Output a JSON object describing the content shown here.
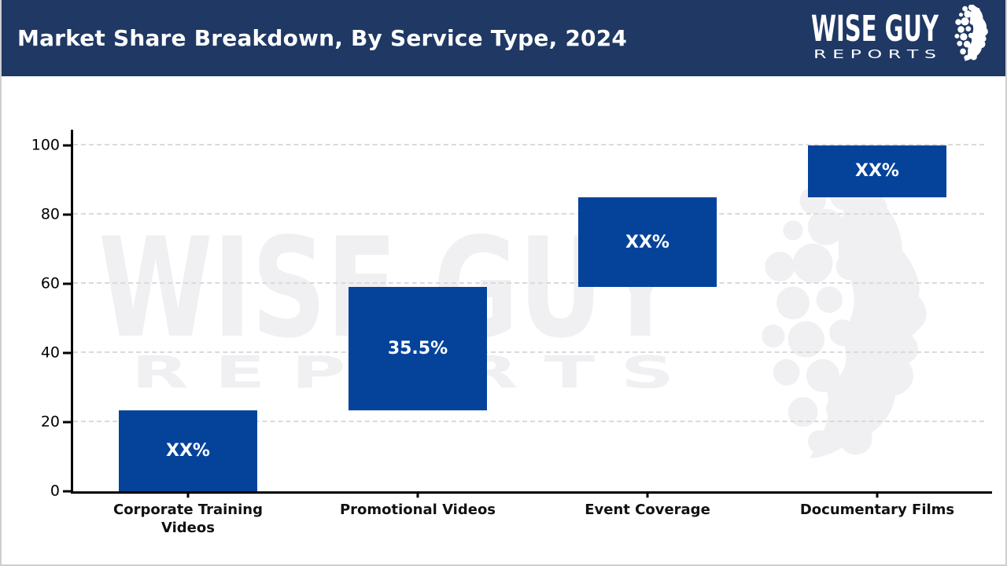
{
  "header": {
    "title": "Market Share Breakdown, By Service Type, 2024",
    "logo": {
      "brand_top": "WISE GUY",
      "brand_bottom": "R E P O R T S"
    }
  },
  "watermark": {
    "line1": "WISE GUY",
    "line2": "R E P O R T S"
  },
  "colors": {
    "header_bg": "#1F3864",
    "bar": "#05439B",
    "grid": "#DADADA",
    "axis": "#000000",
    "bar_label": "#FFFFFF",
    "watermark": "#F0F0F3",
    "frame_border": "#CFCFCF"
  },
  "chart_data": {
    "type": "bar",
    "subtype": "floating-waterfall",
    "title": "Market Share Breakdown, By Service Type, 2024",
    "categories": [
      "Corporate Training Videos",
      "Promotional Videos",
      "Event Coverage",
      "Documentary Films"
    ],
    "bars": [
      {
        "category": "Corporate Training Videos",
        "start": 0,
        "end": 23.5,
        "label": "XX%"
      },
      {
        "category": "Promotional Videos",
        "start": 23.5,
        "end": 59,
        "label": "35.5%"
      },
      {
        "category": "Event Coverage",
        "start": 59,
        "end": 85,
        "label": "XX%"
      },
      {
        "category": "Documentary Films",
        "start": 85,
        "end": 100,
        "label": "XX%"
      }
    ],
    "yticks": [
      0,
      20,
      40,
      60,
      80,
      100
    ],
    "ylim": [
      0,
      104.5
    ],
    "ylabel": "",
    "xlabel": "",
    "grid": "horizontal-dashed",
    "legend": "none",
    "bar_width_frac": 0.6
  }
}
